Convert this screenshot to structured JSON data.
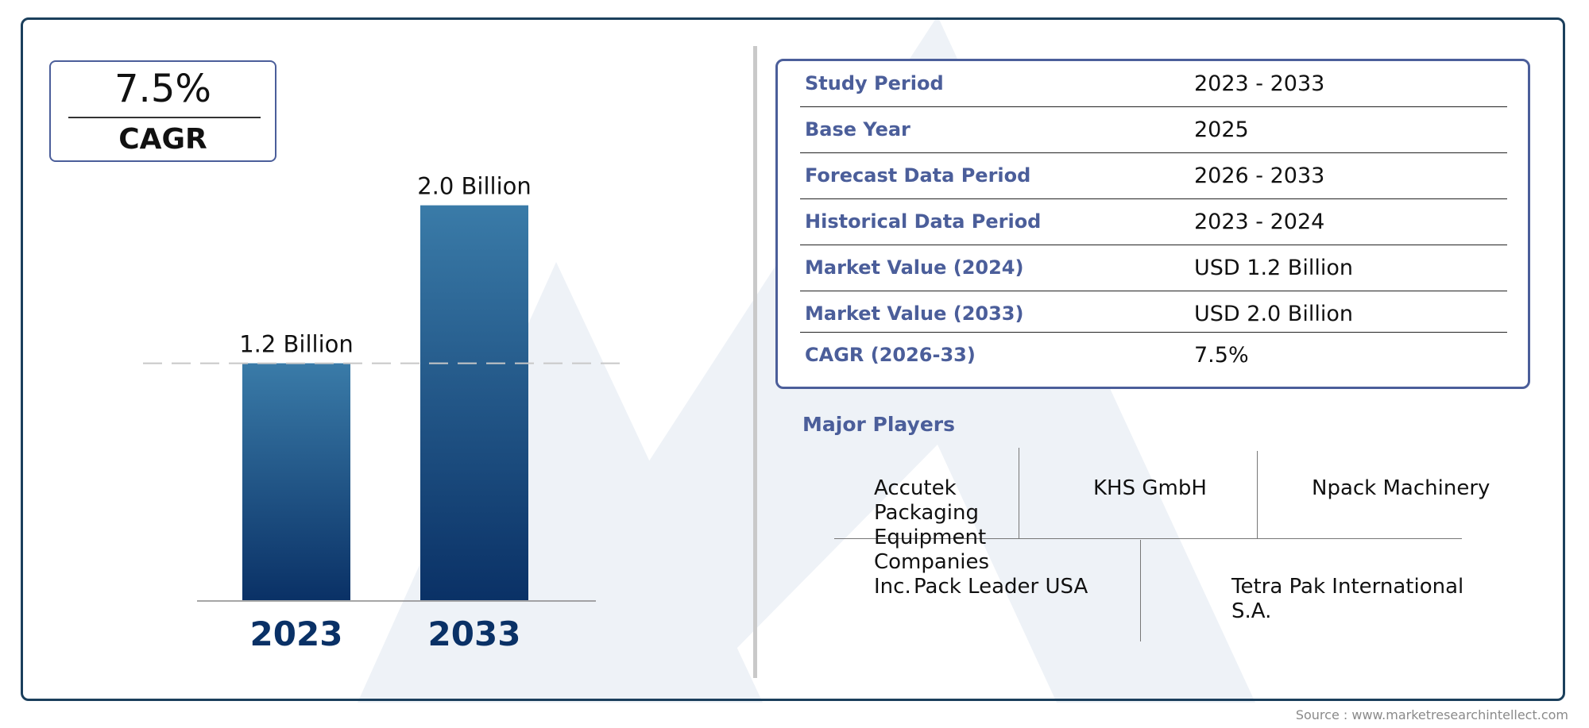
{
  "cagr_badge": {
    "value": "7.5%",
    "label": "CAGR"
  },
  "chart_data": {
    "type": "bar",
    "categories": [
      "2023",
      "2033"
    ],
    "values": [
      1.2,
      2.0
    ],
    "value_labels": [
      "1.2 Billion",
      "2.0 Billion"
    ],
    "ylim": [
      0,
      2.3
    ],
    "reference_line": 1.2,
    "bar_gradient": [
      "#3a7ba8",
      "#0a3166"
    ],
    "tick_color": "#0a3166"
  },
  "info_table": [
    {
      "label": "Study Period",
      "value": "2023 - 2033"
    },
    {
      "label": "Base Year",
      "value": "2025"
    },
    {
      "label": "Forecast Data Period",
      "value": "2026 - 2033"
    },
    {
      "label": "Historical Data Period",
      "value": "2023 - 2024"
    },
    {
      "label": "Market Value (2024)",
      "value": "USD 1.2 Billion"
    },
    {
      "label": "Market Value (2033)",
      "value": "USD 2.0 Billion"
    },
    {
      "label": "CAGR (2026-33)",
      "value": "7.5%"
    }
  ],
  "players": {
    "title": "Major Players",
    "names": [
      "Accutek Packaging Equipment Companies Inc.",
      "KHS GmbH",
      "Npack Machinery",
      "Pack Leader USA",
      "Tetra Pak International S.A."
    ]
  },
  "source": "Source : www.marketresearchintellect.com",
  "colors": {
    "frame": "#1b3f5c",
    "accent": "#4b5e9a",
    "watermark": "#eef2f7"
  }
}
